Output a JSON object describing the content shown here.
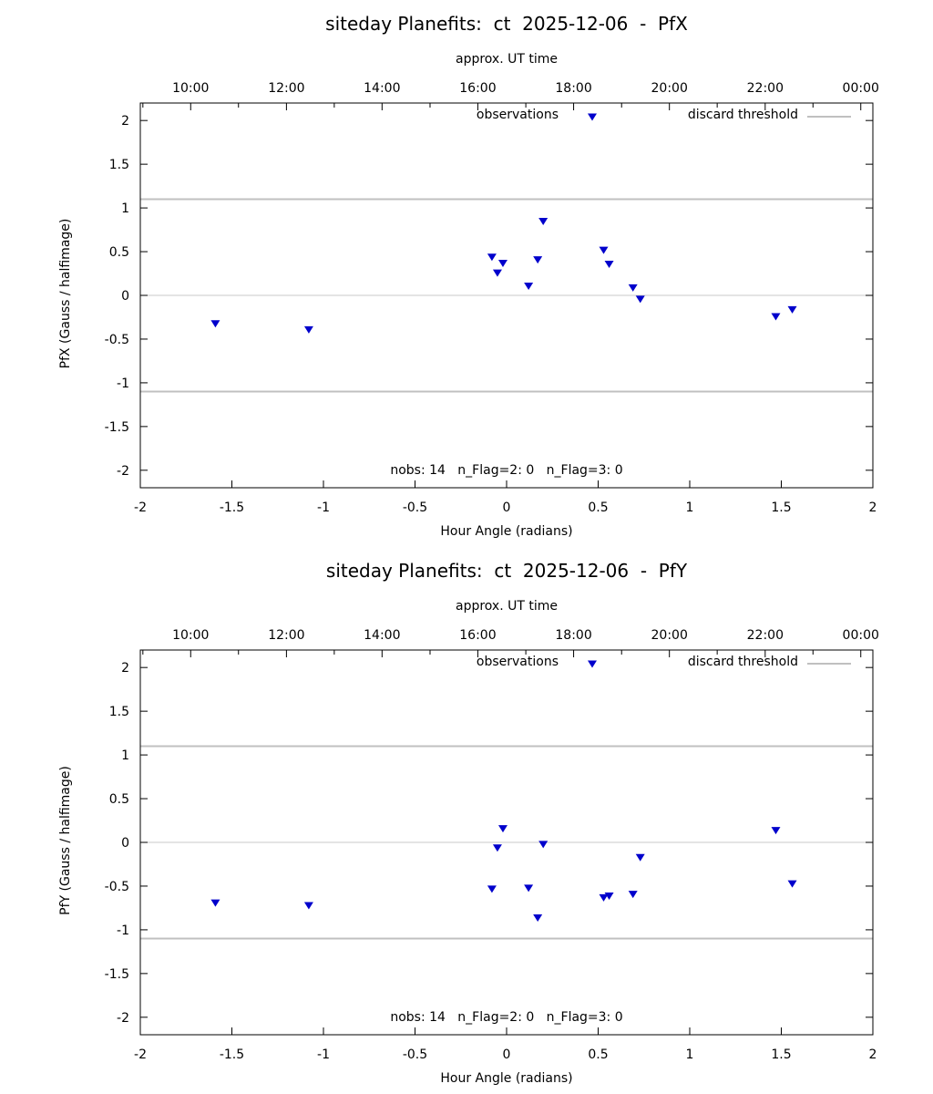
{
  "page": {
    "background": "#ffffff"
  },
  "colors": {
    "marker_blue": "#0000cc",
    "threshold_gray": "#c0c0c0",
    "zero_line_gray": "#c8c8c8",
    "axis_black": "#000000"
  },
  "chart_data": [
    {
      "type": "scatter",
      "title": "siteday Planefits:  ct  2025-12-06  -  PfX",
      "x2label": "approx. UT time",
      "xlabel": "Hour Angle (radians)",
      "ylabel": "PfX (Gauss / halfimage)",
      "annotation": "nobs: 14   n_Flag=2: 0   n_Flag=3: 0",
      "stats": {
        "nobs": 14,
        "n_Flag2": 0,
        "n_Flag3": 0
      },
      "xlim": [
        -2,
        2
      ],
      "ylim": [
        -2.2,
        2.2
      ],
      "grid": false,
      "xticks": {
        "values": [
          -2,
          -1.5,
          -1,
          -0.5,
          0,
          0.5,
          1,
          1.5,
          2
        ],
        "labels": [
          "-2",
          "-1.5",
          "-1",
          "-0.5",
          "0",
          "0.5",
          "1",
          "1.5",
          "2"
        ]
      },
      "yticks": {
        "values": [
          2,
          1.5,
          1,
          0.5,
          0,
          -0.5,
          -1,
          -1.5,
          -2
        ],
        "labels": [
          "2",
          "1.5",
          "1",
          "0.5",
          "0",
          "-0.5",
          "-1",
          "-1.5",
          "-2"
        ]
      },
      "x2ticks": {
        "labels": [
          "10:00",
          "12:00",
          "14:00",
          "16:00",
          "18:00",
          "20:00",
          "22:00",
          "00:00"
        ],
        "values_rad": [
          -1.725,
          -1.202,
          -0.68,
          -0.157,
          0.366,
          0.889,
          1.412,
          1.934
        ],
        "minor_rad": [
          -1.986,
          -1.464,
          -0.941,
          -0.418,
          0.105,
          0.628,
          1.15,
          1.673
        ]
      },
      "thresholds": [
        1.1,
        -1.1
      ],
      "zero_line": 0,
      "legend": {
        "position": "top-inside",
        "entries": [
          {
            "label": "observations",
            "sample": "marker"
          },
          {
            "label": "discard threshold",
            "sample": "line"
          }
        ]
      },
      "series": [
        {
          "name": "observations",
          "marker": "triangle-down",
          "color": "#0000cc",
          "points": [
            [
              -1.59,
              -0.32
            ],
            [
              -1.08,
              -0.39
            ],
            [
              -0.08,
              0.44
            ],
            [
              -0.05,
              0.26
            ],
            [
              -0.02,
              0.37
            ],
            [
              0.12,
              0.11
            ],
            [
              0.17,
              0.41
            ],
            [
              0.2,
              0.85
            ],
            [
              0.53,
              0.52
            ],
            [
              0.56,
              0.36
            ],
            [
              0.69,
              0.09
            ],
            [
              0.73,
              -0.04
            ],
            [
              1.47,
              -0.24
            ],
            [
              1.56,
              -0.16
            ]
          ]
        }
      ]
    },
    {
      "type": "scatter",
      "title": "siteday Planefits:  ct  2025-12-06  -  PfY",
      "x2label": "approx. UT time",
      "xlabel": "Hour Angle (radians)",
      "ylabel": "PfY (Gauss / halfimage)",
      "annotation": "nobs: 14   n_Flag=2: 0   n_Flag=3: 0",
      "stats": {
        "nobs": 14,
        "n_Flag2": 0,
        "n_Flag3": 0
      },
      "xlim": [
        -2,
        2
      ],
      "ylim": [
        -2.2,
        2.2
      ],
      "grid": false,
      "xticks": {
        "values": [
          -2,
          -1.5,
          -1,
          -0.5,
          0,
          0.5,
          1,
          1.5,
          2
        ],
        "labels": [
          "-2",
          "-1.5",
          "-1",
          "-0.5",
          "0",
          "0.5",
          "1",
          "1.5",
          "2"
        ]
      },
      "yticks": {
        "values": [
          2,
          1.5,
          1,
          0.5,
          0,
          -0.5,
          -1,
          -1.5,
          -2
        ],
        "labels": [
          "2",
          "1.5",
          "1",
          "0.5",
          "0",
          "-0.5",
          "-1",
          "-1.5",
          "-2"
        ]
      },
      "x2ticks": {
        "labels": [
          "10:00",
          "12:00",
          "14:00",
          "16:00",
          "18:00",
          "20:00",
          "22:00",
          "00:00"
        ],
        "values_rad": [
          -1.725,
          -1.202,
          -0.68,
          -0.157,
          0.366,
          0.889,
          1.412,
          1.934
        ],
        "minor_rad": [
          -1.986,
          -1.464,
          -0.941,
          -0.418,
          0.105,
          0.628,
          1.15,
          1.673
        ]
      },
      "thresholds": [
        1.1,
        -1.1
      ],
      "zero_line": 0,
      "legend": {
        "position": "top-inside",
        "entries": [
          {
            "label": "observations",
            "sample": "marker"
          },
          {
            "label": "discard threshold",
            "sample": "line"
          }
        ]
      },
      "series": [
        {
          "name": "observations",
          "marker": "triangle-down",
          "color": "#0000cc",
          "points": [
            [
              -1.59,
              -0.69
            ],
            [
              -1.08,
              -0.72
            ],
            [
              -0.08,
              -0.53
            ],
            [
              -0.05,
              -0.06
            ],
            [
              -0.02,
              0.16
            ],
            [
              0.12,
              -0.52
            ],
            [
              0.17,
              -0.86
            ],
            [
              0.2,
              -0.02
            ],
            [
              0.53,
              -0.63
            ],
            [
              0.56,
              -0.61
            ],
            [
              0.69,
              -0.59
            ],
            [
              0.73,
              -0.17
            ],
            [
              1.47,
              0.14
            ],
            [
              1.56,
              -0.47
            ]
          ]
        }
      ]
    }
  ]
}
